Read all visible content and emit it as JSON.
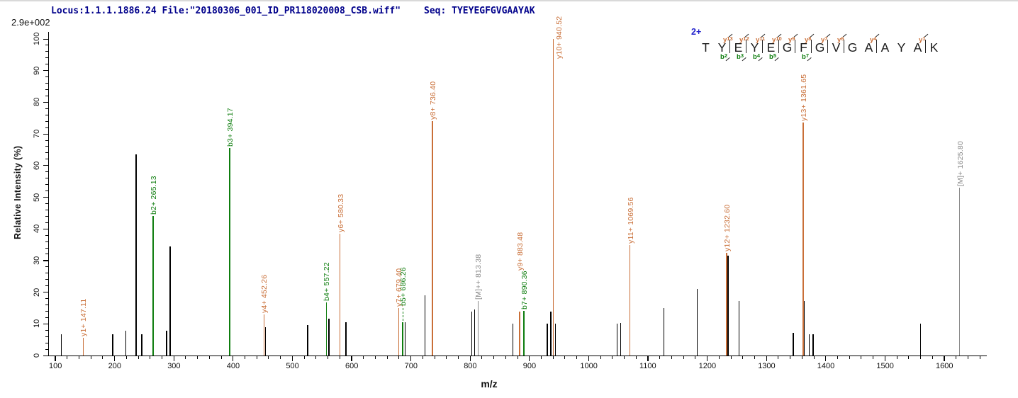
{
  "header": {
    "locus_file": "Locus:1.1.1.1886.24 File:\"20180306_001_ID_PR118020008_CSB.wiff\"",
    "seq": "Seq: TYEYEGFGVGAAYAK",
    "max_intensity": "2.9e+002"
  },
  "colors": {
    "y_ion": "#C96F38",
    "b_ion": "#0E7D0E",
    "precursor": "#8B8B8B",
    "unassigned": "#000000",
    "title": "#00008B",
    "charge": "#2222CC",
    "axis": "#000000"
  },
  "ladder": {
    "charge": "2+",
    "residues": [
      "T",
      "Y",
      "E",
      "Y",
      "E",
      "G",
      "F",
      "G",
      "V",
      "G",
      "A",
      "A",
      "Y",
      "A",
      "K"
    ],
    "cleavages": [
      {
        "after": 2,
        "y": "y13",
        "b": "b2"
      },
      {
        "after": 3,
        "y": "y12",
        "b": "b3"
      },
      {
        "after": 4,
        "y": "y11",
        "b": "b4"
      },
      {
        "after": 5,
        "y": "y10",
        "b": "b5"
      },
      {
        "after": 6,
        "y": "y9"
      },
      {
        "after": 7,
        "y": "y8",
        "b": "b7"
      },
      {
        "after": 8,
        "y": "y7"
      },
      {
        "after": 9,
        "y": "y6"
      },
      {
        "after": 11,
        "y": "y4"
      },
      {
        "after": 14,
        "y": "y1"
      }
    ]
  },
  "chart_data": {
    "type": "bar",
    "subtype": "mass-spectrum-stick-plot",
    "title": "",
    "xlabel": "m/z",
    "ylabel": "Relative  Intensity (%)",
    "xlim": [
      100,
      1660
    ],
    "ylim": [
      0,
      100
    ],
    "grid": false,
    "x_ticks": [
      100,
      200,
      300,
      400,
      500,
      600,
      700,
      800,
      900,
      1000,
      1100,
      1200,
      1300,
      1400,
      1500,
      1600
    ],
    "x_minor_tick_step": 20,
    "y_ticks": [
      0,
      10,
      20,
      30,
      40,
      50,
      60,
      70,
      80,
      90,
      100
    ],
    "y_minor_tick_step": 2,
    "peaks": [
      {
        "mz": 110.0,
        "intensity": 6.8,
        "series": "unassigned"
      },
      {
        "mz": 147.11,
        "intensity": 5.7,
        "series": "y",
        "label": "y1+ 147.11"
      },
      {
        "mz": 197.0,
        "intensity": 6.8,
        "series": "unassigned"
      },
      {
        "mz": 219.0,
        "intensity": 7.8,
        "series": "unassigned"
      },
      {
        "mz": 236.5,
        "intensity": 63.5,
        "series": "unassigned"
      },
      {
        "mz": 246.0,
        "intensity": 6.8,
        "series": "unassigned"
      },
      {
        "mz": 265.13,
        "intensity": 44.0,
        "series": "b",
        "label": "b2+ 265.13"
      },
      {
        "mz": 288.0,
        "intensity": 7.9,
        "series": "unassigned"
      },
      {
        "mz": 294.0,
        "intensity": 34.5,
        "series": "unassigned"
      },
      {
        "mz": 394.17,
        "intensity": 65.5,
        "series": "b",
        "label": "b3+ 394.17"
      },
      {
        "mz": 452.26,
        "intensity": 13.0,
        "series": "y",
        "label": "y4+ 452.26"
      },
      {
        "mz": 455.0,
        "intensity": 9.0,
        "series": "unassigned"
      },
      {
        "mz": 526.0,
        "intensity": 9.7,
        "series": "unassigned"
      },
      {
        "mz": 557.22,
        "intensity": 16.8,
        "series": "b",
        "label": "b4+ 557.22"
      },
      {
        "mz": 561.5,
        "intensity": 11.6,
        "series": "unassigned"
      },
      {
        "mz": 580.33,
        "intensity": 38.5,
        "series": "y",
        "label": "y6+ 580.33"
      },
      {
        "mz": 590.5,
        "intensity": 10.5,
        "series": "unassigned"
      },
      {
        "mz": 679.4,
        "intensity": 15.0,
        "series": "y",
        "label": "y7+ 679.40"
      },
      {
        "mz": 686.26,
        "intensity": 10.5,
        "series": "b",
        "label": "b5+ 686.26",
        "label_pos": "raised-dashed"
      },
      {
        "mz": 690.0,
        "intensity": 10.5,
        "series": "unassigned"
      },
      {
        "mz": 724.0,
        "intensity": 19.0,
        "series": "unassigned"
      },
      {
        "mz": 736.4,
        "intensity": 74.0,
        "series": "y",
        "label": "y8+ 736.40"
      },
      {
        "mz": 802.5,
        "intensity": 13.9,
        "series": "unassigned"
      },
      {
        "mz": 807.5,
        "intensity": 14.6,
        "series": "unassigned"
      },
      {
        "mz": 813.38,
        "intensity": 17.2,
        "series": "precursor",
        "label": "[M]++ 813.38"
      },
      {
        "mz": 872.0,
        "intensity": 10.1,
        "series": "unassigned"
      },
      {
        "mz": 883.48,
        "intensity": 13.9,
        "series": "y",
        "label": "y9+ 883.48",
        "label_pos": "raised"
      },
      {
        "mz": 890.36,
        "intensity": 14.2,
        "series": "b",
        "label": "b7+ 890.36"
      },
      {
        "mz": 930.0,
        "intensity": 10.1,
        "series": "unassigned"
      },
      {
        "mz": 936.0,
        "intensity": 13.9,
        "series": "unassigned"
      },
      {
        "mz": 940.52,
        "intensity": 100.0,
        "series": "y",
        "label": "y10+ 940.52",
        "label_pos": "beside"
      },
      {
        "mz": 944.0,
        "intensity": 10.1,
        "series": "unassigned"
      },
      {
        "mz": 1048.0,
        "intensity": 10.1,
        "series": "unassigned"
      },
      {
        "mz": 1054.0,
        "intensity": 10.4,
        "series": "unassigned"
      },
      {
        "mz": 1069.56,
        "intensity": 35.0,
        "series": "y",
        "label": "y11+ 1069.56"
      },
      {
        "mz": 1127.0,
        "intensity": 15.0,
        "series": "unassigned"
      },
      {
        "mz": 1183.0,
        "intensity": 21.0,
        "series": "unassigned"
      },
      {
        "mz": 1232.6,
        "intensity": 32.5,
        "series": "y",
        "label": "y12+ 1232.60"
      },
      {
        "mz": 1235.0,
        "intensity": 31.5,
        "series": "unassigned"
      },
      {
        "mz": 1254.0,
        "intensity": 17.2,
        "series": "unassigned"
      },
      {
        "mz": 1345.0,
        "intensity": 7.2,
        "series": "unassigned"
      },
      {
        "mz": 1361.65,
        "intensity": 73.5,
        "series": "y",
        "label": "y13+ 1361.65"
      },
      {
        "mz": 1364.0,
        "intensity": 17.2,
        "series": "unassigned"
      },
      {
        "mz": 1372.0,
        "intensity": 6.8,
        "series": "unassigned"
      },
      {
        "mz": 1378.5,
        "intensity": 6.8,
        "series": "unassigned"
      },
      {
        "mz": 1560.0,
        "intensity": 10.1,
        "series": "unassigned"
      },
      {
        "mz": 1625.8,
        "intensity": 53.0,
        "series": "precursor",
        "label": "[M]+ 1625.80"
      }
    ]
  }
}
